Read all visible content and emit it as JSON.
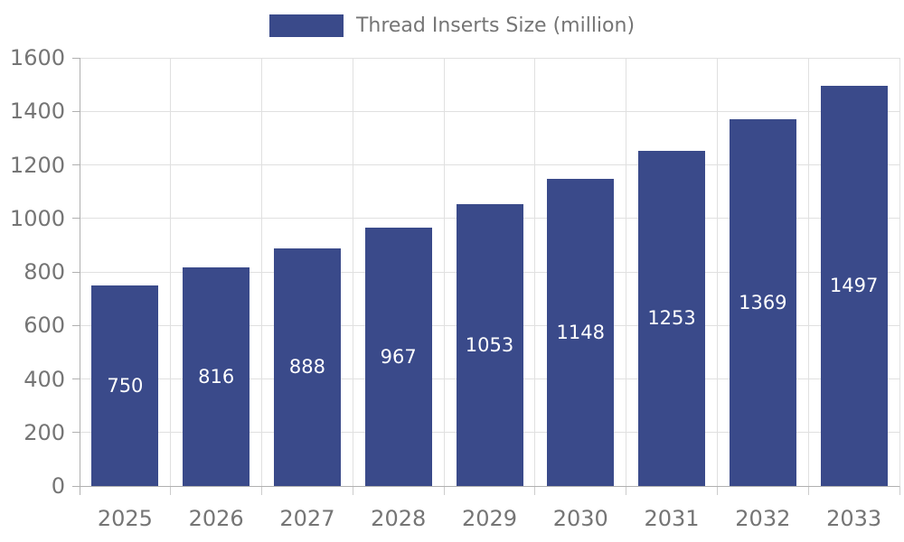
{
  "legend": {
    "label": "Thread Inserts Size (million)"
  },
  "chart_data": {
    "type": "bar",
    "title": "Thread Inserts Size (million)",
    "categories": [
      "2025",
      "2026",
      "2027",
      "2028",
      "2029",
      "2030",
      "2031",
      "2032",
      "2033"
    ],
    "values": [
      750,
      816,
      888,
      967,
      1053,
      1148,
      1253,
      1369,
      1497
    ],
    "series_name": "Thread Inserts Size (million)",
    "xlabel": "",
    "ylabel": "",
    "ylim": [
      0,
      1600
    ],
    "yticks": [
      0,
      200,
      400,
      600,
      800,
      1000,
      1200,
      1400,
      1600
    ],
    "grid": true,
    "legend_position": "top-center",
    "value_labels": "inside-center"
  },
  "colors": {
    "bar": "#3A4A8A",
    "value_label": "#ffffff",
    "axis_label": "#757575",
    "legend_text": "#757575",
    "gridline": "#e0e0e0",
    "axis_line": "#b0b0b0",
    "tick": "#cccccc",
    "background": "#ffffff"
  }
}
